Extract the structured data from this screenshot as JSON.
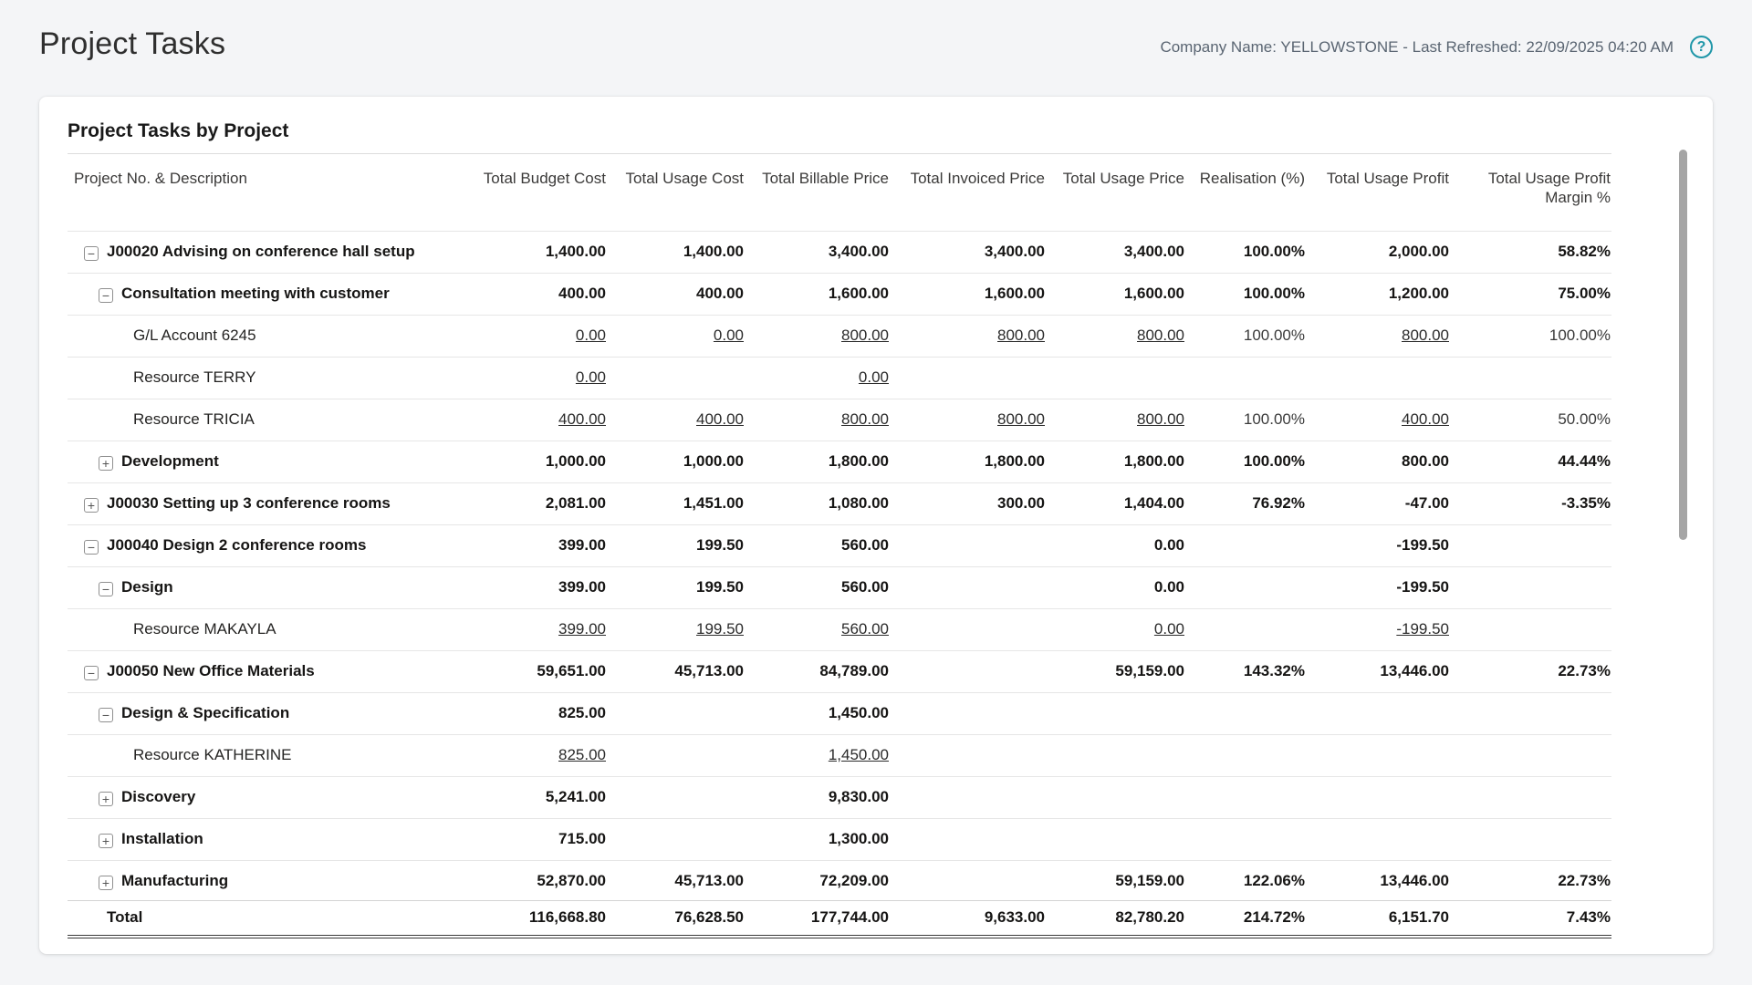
{
  "header": {
    "title": "Project Tasks",
    "meta_text": "Company Name: YELLOWSTONE - Last Refreshed: 22/09/2025 04:20 AM",
    "help_icon": "help-circle"
  },
  "report": {
    "title": "Project Tasks by Project",
    "columns": [
      "Project No. & Description",
      "Total Budget Cost",
      "Total Usage Cost",
      "Total Billable Price",
      "Total Invoiced Price",
      "Total Usage Price",
      "Realisation (%)",
      "Total Usage Profit",
      "Total Usage Profit Margin %"
    ],
    "rows": [
      {
        "label": "J00020 Advising on conference hall setup",
        "level": 0,
        "toggle": "expanded",
        "bold": true,
        "cells": [
          {
            "text": "1,400.00"
          },
          {
            "text": "1,400.00"
          },
          {
            "text": "3,400.00"
          },
          {
            "text": "3,400.00"
          },
          {
            "text": "3,400.00"
          },
          {
            "text": "100.00%"
          },
          {
            "text": "2,000.00"
          },
          {
            "text": "58.82%"
          }
        ]
      },
      {
        "label": "Consultation meeting with customer",
        "level": 1,
        "toggle": "expanded",
        "bold": true,
        "cells": [
          {
            "text": "400.00"
          },
          {
            "text": "400.00"
          },
          {
            "text": "1,600.00"
          },
          {
            "text": "1,600.00"
          },
          {
            "text": "1,600.00"
          },
          {
            "text": "100.00%"
          },
          {
            "text": "1,200.00"
          },
          {
            "text": "75.00%"
          }
        ]
      },
      {
        "label": "G/L Account 6245",
        "level": 2,
        "toggle": null,
        "bold": false,
        "cells": [
          {
            "text": "0.00",
            "link": true
          },
          {
            "text": "0.00",
            "link": true
          },
          {
            "text": "800.00",
            "link": true
          },
          {
            "text": "800.00",
            "link": true
          },
          {
            "text": "800.00",
            "link": true
          },
          {
            "text": "100.00%"
          },
          {
            "text": "800.00",
            "link": true
          },
          {
            "text": "100.00%"
          }
        ]
      },
      {
        "label": "Resource TERRY",
        "level": 2,
        "toggle": null,
        "bold": false,
        "cells": [
          {
            "text": "0.00",
            "link": true
          },
          {
            "text": ""
          },
          {
            "text": "0.00",
            "link": true
          },
          {
            "text": ""
          },
          {
            "text": ""
          },
          {
            "text": ""
          },
          {
            "text": ""
          },
          {
            "text": ""
          }
        ]
      },
      {
        "label": "Resource TRICIA",
        "level": 2,
        "toggle": null,
        "bold": false,
        "cells": [
          {
            "text": "400.00",
            "link": true
          },
          {
            "text": "400.00",
            "link": true
          },
          {
            "text": "800.00",
            "link": true
          },
          {
            "text": "800.00",
            "link": true
          },
          {
            "text": "800.00",
            "link": true
          },
          {
            "text": "100.00%"
          },
          {
            "text": "400.00",
            "link": true
          },
          {
            "text": "50.00%"
          }
        ]
      },
      {
        "label": "Development",
        "level": 1,
        "toggle": "collapsed",
        "bold": true,
        "cells": [
          {
            "text": "1,000.00"
          },
          {
            "text": "1,000.00"
          },
          {
            "text": "1,800.00"
          },
          {
            "text": "1,800.00"
          },
          {
            "text": "1,800.00"
          },
          {
            "text": "100.00%"
          },
          {
            "text": "800.00"
          },
          {
            "text": "44.44%"
          }
        ]
      },
      {
        "label": "J00030 Setting up 3 conference rooms",
        "level": 0,
        "toggle": "collapsed",
        "bold": true,
        "cells": [
          {
            "text": "2,081.00"
          },
          {
            "text": "1,451.00"
          },
          {
            "text": "1,080.00"
          },
          {
            "text": "300.00"
          },
          {
            "text": "1,404.00"
          },
          {
            "text": "76.92%"
          },
          {
            "text": "-47.00"
          },
          {
            "text": "-3.35%"
          }
        ]
      },
      {
        "label": "J00040 Design 2 conference rooms",
        "level": 0,
        "toggle": "expanded",
        "bold": true,
        "cells": [
          {
            "text": "399.00"
          },
          {
            "text": "199.50"
          },
          {
            "text": "560.00"
          },
          {
            "text": ""
          },
          {
            "text": "0.00"
          },
          {
            "text": ""
          },
          {
            "text": "-199.50"
          },
          {
            "text": ""
          }
        ]
      },
      {
        "label": "Design",
        "level": 1,
        "toggle": "expanded",
        "bold": true,
        "cells": [
          {
            "text": "399.00"
          },
          {
            "text": "199.50"
          },
          {
            "text": "560.00"
          },
          {
            "text": ""
          },
          {
            "text": "0.00"
          },
          {
            "text": ""
          },
          {
            "text": "-199.50"
          },
          {
            "text": ""
          }
        ]
      },
      {
        "label": "Resource MAKAYLA",
        "level": 2,
        "toggle": null,
        "bold": false,
        "cells": [
          {
            "text": "399.00",
            "link": true
          },
          {
            "text": "199.50",
            "link": true
          },
          {
            "text": "560.00",
            "link": true
          },
          {
            "text": ""
          },
          {
            "text": "0.00",
            "link": true
          },
          {
            "text": ""
          },
          {
            "text": "-199.50",
            "link": true
          },
          {
            "text": ""
          }
        ]
      },
      {
        "label": "J00050 New Office Materials",
        "level": 0,
        "toggle": "expanded",
        "bold": true,
        "cells": [
          {
            "text": "59,651.00"
          },
          {
            "text": "45,713.00"
          },
          {
            "text": "84,789.00"
          },
          {
            "text": ""
          },
          {
            "text": "59,159.00"
          },
          {
            "text": "143.32%"
          },
          {
            "text": "13,446.00"
          },
          {
            "text": "22.73%"
          }
        ]
      },
      {
        "label": "Design & Specification",
        "level": 1,
        "toggle": "expanded",
        "bold": true,
        "cells": [
          {
            "text": "825.00"
          },
          {
            "text": ""
          },
          {
            "text": "1,450.00"
          },
          {
            "text": ""
          },
          {
            "text": ""
          },
          {
            "text": ""
          },
          {
            "text": ""
          },
          {
            "text": ""
          }
        ]
      },
      {
        "label": "Resource KATHERINE",
        "level": 2,
        "toggle": null,
        "bold": false,
        "cells": [
          {
            "text": "825.00",
            "link": true
          },
          {
            "text": ""
          },
          {
            "text": "1,450.00",
            "link": true
          },
          {
            "text": ""
          },
          {
            "text": ""
          },
          {
            "text": ""
          },
          {
            "text": ""
          },
          {
            "text": ""
          }
        ]
      },
      {
        "label": "Discovery",
        "level": 1,
        "toggle": "collapsed",
        "bold": true,
        "cells": [
          {
            "text": "5,241.00"
          },
          {
            "text": ""
          },
          {
            "text": "9,830.00"
          },
          {
            "text": ""
          },
          {
            "text": ""
          },
          {
            "text": ""
          },
          {
            "text": ""
          },
          {
            "text": ""
          }
        ]
      },
      {
        "label": "Installation",
        "level": 1,
        "toggle": "collapsed",
        "bold": true,
        "cells": [
          {
            "text": "715.00"
          },
          {
            "text": ""
          },
          {
            "text": "1,300.00"
          },
          {
            "text": ""
          },
          {
            "text": ""
          },
          {
            "text": ""
          },
          {
            "text": ""
          },
          {
            "text": ""
          }
        ]
      },
      {
        "label": "Manufacturing",
        "level": 1,
        "toggle": "collapsed",
        "bold": true,
        "cells": [
          {
            "text": "52,870.00"
          },
          {
            "text": "45,713.00"
          },
          {
            "text": "72,209.00"
          },
          {
            "text": ""
          },
          {
            "text": "59,159.00"
          },
          {
            "text": "122.06%"
          },
          {
            "text": "13,446.00"
          },
          {
            "text": "22.73%"
          }
        ]
      }
    ],
    "total": {
      "label": "Total",
      "cells": [
        "116,668.80",
        "76,628.50",
        "177,744.00",
        "9,633.00",
        "82,780.20",
        "214.72%",
        "6,151.70",
        "7.43%"
      ]
    }
  },
  "colors": {
    "accent_teal": "#1e96a8",
    "card_bg": "#ffffff",
    "page_bg": "#f4f5f7"
  }
}
